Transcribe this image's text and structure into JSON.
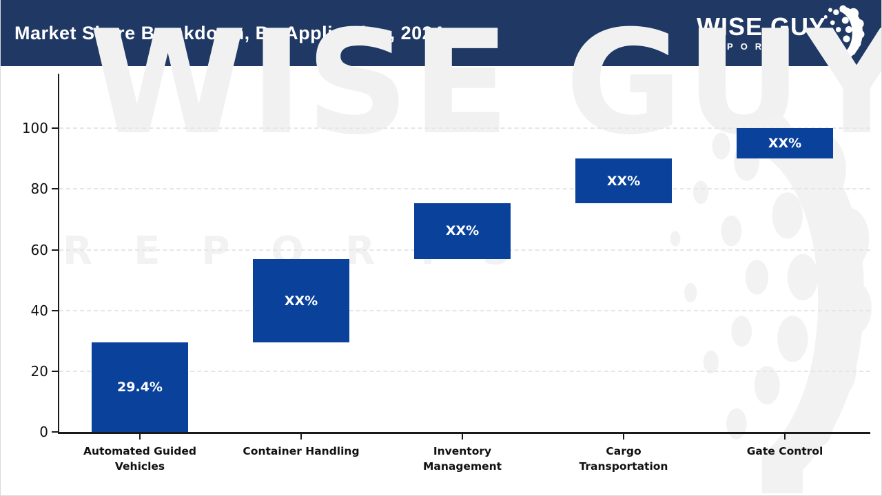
{
  "header": {
    "title": "Market Share Breakdown, By Application, 2024"
  },
  "logo": {
    "name": "WISE GUY",
    "subtitle": "REPORTS"
  },
  "watermark": {
    "line1": "WISE GUY",
    "line2": "REPORTS"
  },
  "colors": {
    "header_bg": "#1f3864",
    "bar_fill": "#09419b",
    "bar_label": "#ffffff",
    "grid": "#e6e6e6",
    "axis": "#1a1a1a",
    "text": "#111111",
    "watermark": "#f1f1f1"
  },
  "chart_data": {
    "type": "bar",
    "subtype": "waterfall-style floating segments",
    "title": "Market Share Breakdown, By Application, 2024",
    "xlabel": "",
    "ylabel": "",
    "ylim": [
      0,
      118
    ],
    "yticks": [
      0,
      20,
      40,
      60,
      80,
      100
    ],
    "grid": "horizontal dashed",
    "legend": "none",
    "categories": [
      "Automated Guided Vehicles",
      "Container Handling",
      "Inventory Management",
      "Cargo Transportation",
      "Gate Control"
    ],
    "category_label_lines": [
      [
        "Automated Guided",
        "Vehicles"
      ],
      [
        "Container Handling"
      ],
      [
        "Inventory",
        "Management"
      ],
      [
        "Cargo",
        "Transportation"
      ],
      [
        "Gate Control"
      ]
    ],
    "series": [
      {
        "name": "Market Share (%)",
        "segments": [
          {
            "category": "Automated Guided Vehicles",
            "start": 0,
            "end": 29.4,
            "value": 29.4,
            "label": "29.4%"
          },
          {
            "category": "Container Handling",
            "start": 29.4,
            "end": 57.0,
            "value": 27.6,
            "label": "XX%"
          },
          {
            "category": "Inventory Management",
            "start": 57.0,
            "end": 75.3,
            "value": 18.3,
            "label": "XX%"
          },
          {
            "category": "Cargo Transportation",
            "start": 75.3,
            "end": 90.0,
            "value": 14.7,
            "label": "XX%"
          },
          {
            "category": "Gate Control",
            "start": 90.0,
            "end": 100.0,
            "value": 10.0,
            "label": "XX%"
          }
        ]
      }
    ]
  }
}
